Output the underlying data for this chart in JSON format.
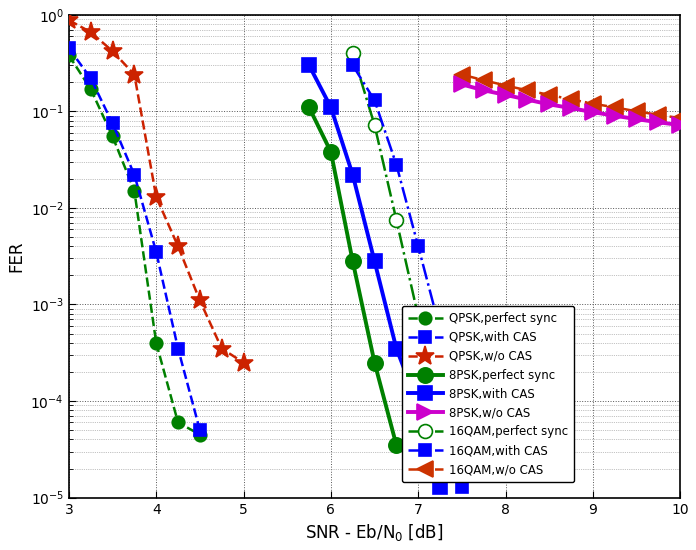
{
  "title": "",
  "xlabel": "SNR - Eb/N$_0$ [dB]",
  "ylabel": "FER",
  "xlim": [
    3,
    10
  ],
  "ylim_log": [
    -5,
    0
  ],
  "background_color": "#ffffff",
  "series": [
    {
      "label": "QPSK,perfect sync",
      "x": [
        3.0,
        3.25,
        3.5,
        3.75,
        4.0,
        4.25,
        4.5
      ],
      "y": [
        0.38,
        0.17,
        0.055,
        0.015,
        0.0004,
        6e-05,
        4.5e-05
      ],
      "color": "#008000",
      "linestyle": "--",
      "linewidth": 1.8,
      "marker": "o",
      "markersize": 9,
      "markerfacecolor": "#008000",
      "markeredgecolor": "#008000",
      "zorder": 3
    },
    {
      "label": "QPSK,with CAS",
      "x": [
        3.0,
        3.25,
        3.5,
        3.75,
        4.0,
        4.25,
        4.5
      ],
      "y": [
        0.45,
        0.22,
        0.075,
        0.022,
        0.0035,
        0.00035,
        5e-05
      ],
      "color": "#0000ff",
      "linestyle": "--",
      "linewidth": 1.8,
      "marker": "s",
      "markersize": 8,
      "markerfacecolor": "#0000ff",
      "markeredgecolor": "#0000ff",
      "zorder": 3
    },
    {
      "label": "QPSK,w/o CAS",
      "x": [
        3.0,
        3.25,
        3.5,
        3.75,
        4.0,
        4.25,
        4.5,
        4.75,
        5.0
      ],
      "y": [
        0.88,
        0.66,
        0.42,
        0.24,
        0.013,
        0.004,
        0.0011,
        0.00035,
        0.00025
      ],
      "color": "#cc2200",
      "linestyle": "--",
      "linewidth": 1.8,
      "marker": "*",
      "markersize": 14,
      "markerfacecolor": "#cc2200",
      "markeredgecolor": "#cc2200",
      "zorder": 3
    },
    {
      "label": "8PSK,perfect sync",
      "x": [
        5.75,
        6.0,
        6.25,
        6.5,
        6.75,
        7.0
      ],
      "y": [
        0.11,
        0.038,
        0.0028,
        0.00025,
        3.5e-05,
        3e-05
      ],
      "color": "#008000",
      "linestyle": "-",
      "linewidth": 2.8,
      "marker": "o",
      "markersize": 11,
      "markerfacecolor": "#008000",
      "markeredgecolor": "#008000",
      "zorder": 4
    },
    {
      "label": "8PSK,with CAS",
      "x": [
        5.75,
        6.0,
        6.25,
        6.5,
        6.75,
        7.0,
        7.25
      ],
      "y": [
        0.3,
        0.11,
        0.022,
        0.0028,
        0.00035,
        9e-05,
        1.3e-05
      ],
      "color": "#0000ff",
      "linestyle": "-",
      "linewidth": 2.8,
      "marker": "s",
      "markersize": 10,
      "markerfacecolor": "#0000ff",
      "markeredgecolor": "#0000ff",
      "zorder": 4
    },
    {
      "label": "8PSK,w/o CAS",
      "x": [
        7.5,
        7.75,
        8.0,
        8.25,
        8.5,
        8.75,
        9.0,
        9.25,
        9.5,
        9.75,
        10.0
      ],
      "y": [
        0.19,
        0.165,
        0.148,
        0.132,
        0.118,
        0.108,
        0.098,
        0.09,
        0.083,
        0.077,
        0.072
      ],
      "color": "#cc00cc",
      "linestyle": "-",
      "linewidth": 2.8,
      "marker": ">",
      "markersize": 11,
      "markerfacecolor": "#cc00cc",
      "markeredgecolor": "#cc00cc",
      "zorder": 4
    },
    {
      "label": "16QAM,perfect sync",
      "x": [
        6.25,
        6.5,
        6.75,
        7.0,
        7.25,
        7.5
      ],
      "y": [
        0.4,
        0.072,
        0.0075,
        0.00075,
        0.00012,
        3.5e-05
      ],
      "color": "#008000",
      "linestyle": "-.",
      "linewidth": 1.8,
      "marker": "o",
      "markersize": 10,
      "markerfacecolor": "#ffffff",
      "markeredgecolor": "#008000",
      "zorder": 3
    },
    {
      "label": "16QAM,with CAS",
      "x": [
        6.25,
        6.5,
        6.75,
        7.0,
        7.25,
        7.5
      ],
      "y": [
        0.3,
        0.13,
        0.028,
        0.004,
        0.00055,
        1.3e-05
      ],
      "color": "#0000ff",
      "linestyle": "-.",
      "linewidth": 1.8,
      "marker": "s",
      "markersize": 8,
      "markerfacecolor": "#0000ff",
      "markeredgecolor": "#0000ff",
      "zorder": 3
    },
    {
      "label": "16QAM,w/o CAS",
      "x": [
        7.5,
        7.75,
        8.0,
        8.25,
        8.5,
        8.75,
        9.0,
        9.25,
        9.5,
        9.75,
        10.0
      ],
      "y": [
        0.24,
        0.21,
        0.185,
        0.165,
        0.148,
        0.133,
        0.12,
        0.11,
        0.1,
        0.092,
        0.085
      ],
      "color": "#cc3300",
      "linestyle": "-.",
      "linewidth": 1.8,
      "marker": "<",
      "markersize": 11,
      "markerfacecolor": "#cc3300",
      "markeredgecolor": "#cc3300",
      "zorder": 3
    }
  ]
}
